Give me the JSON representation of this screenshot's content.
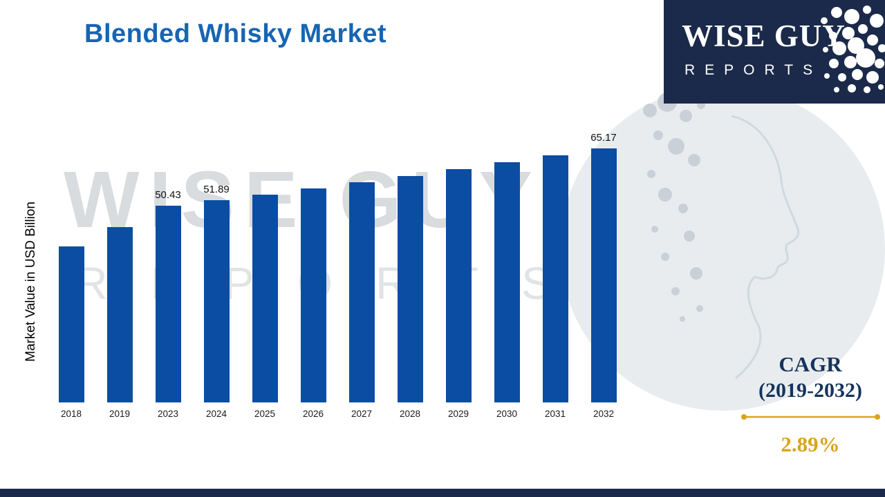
{
  "chart_data": {
    "type": "bar",
    "title": "Blended Whisky Market",
    "ylabel": "Market Value in USD Billion",
    "categories": [
      "2018",
      "2019",
      "2023",
      "2024",
      "2025",
      "2026",
      "2027",
      "2028",
      "2029",
      "2030",
      "2031",
      "2032"
    ],
    "values": [
      40.0,
      45.02,
      50.43,
      51.89,
      53.39,
      54.93,
      56.52,
      58.15,
      59.83,
      61.56,
      63.34,
      65.17
    ],
    "data_labels": [
      "",
      "",
      "50.43",
      "51.89",
      "",
      "",
      "",
      "",
      "",
      "",
      "",
      "65.17"
    ],
    "bar_color": "#0b4da2",
    "ylim": [
      0,
      70
    ],
    "grid": false,
    "legend": "none"
  },
  "logo": {
    "brand_top": "WISE GUY",
    "brand_bottom": "REPORTS",
    "dot_face_icon": "dot-matrix-face-profile"
  },
  "watermark": {
    "line1": "WISE GUY",
    "line2": "REPORTS",
    "face_icon": "face-profile-outline"
  },
  "stats": {
    "cagr_label": "CAGR",
    "cagr_range": "(2019-2032)",
    "cagr_value": "2.89%",
    "accent_gold": "#d9a419",
    "navy": "#14345c"
  }
}
